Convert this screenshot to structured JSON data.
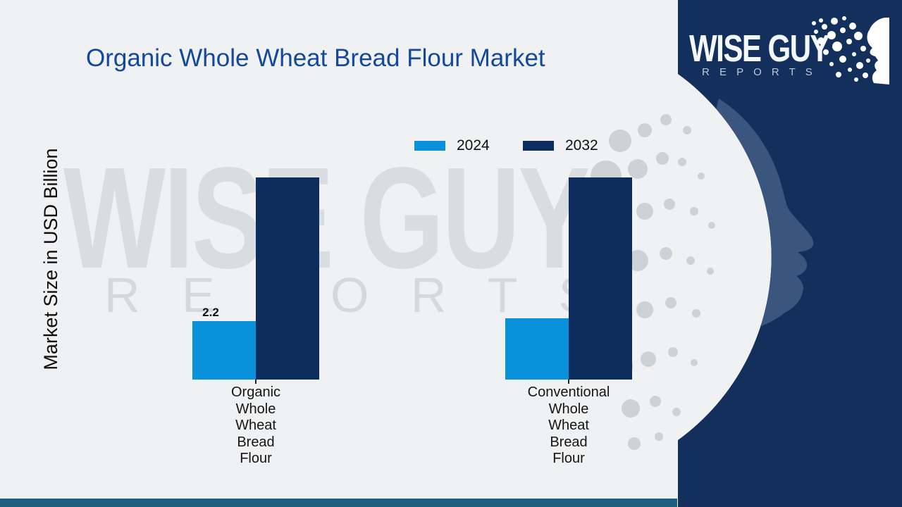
{
  "header": {
    "title": "Organic Whole Wheat Bread Flour Market"
  },
  "brand_logo": {
    "line1": "WISE GUY",
    "line2": "R E P O R T S"
  },
  "watermark": {
    "line1": "WISE GUY",
    "line2": "R E P O R T S"
  },
  "colors": {
    "background": "#f0f1f2",
    "title_blue": "#12489e",
    "series_2024_blue": "#0991dc",
    "series_2032_navy": "#0d2d5e",
    "brand_panel_navy": "#132f5b",
    "face_silhouette_blue": "#3a567f",
    "footer_teal": "#1c5f7f",
    "watermark_gray": "#d9dcdf"
  },
  "chart_data": {
    "type": "bar",
    "title": "Organic Whole Wheat Bread Flour Market",
    "xlabel": "",
    "ylabel": "Market Size in USD Billion",
    "categories": [
      "Organic Whole Wheat Bread Flour",
      "Conventional Whole Wheat Bread Flour"
    ],
    "series": [
      {
        "name": "2024",
        "color": "#0991dc",
        "values": [
          2.2,
          2.3
        ],
        "value_labels": [
          "2.2",
          ""
        ]
      },
      {
        "name": "2032",
        "color": "#0d2d5e",
        "values": [
          7.6,
          7.6
        ],
        "value_labels": [
          "",
          ""
        ]
      }
    ],
    "ylim": [
      0,
      7.6
    ],
    "grid": false,
    "axis_tick_numbers_shown": false,
    "legend_position": "top-center"
  }
}
